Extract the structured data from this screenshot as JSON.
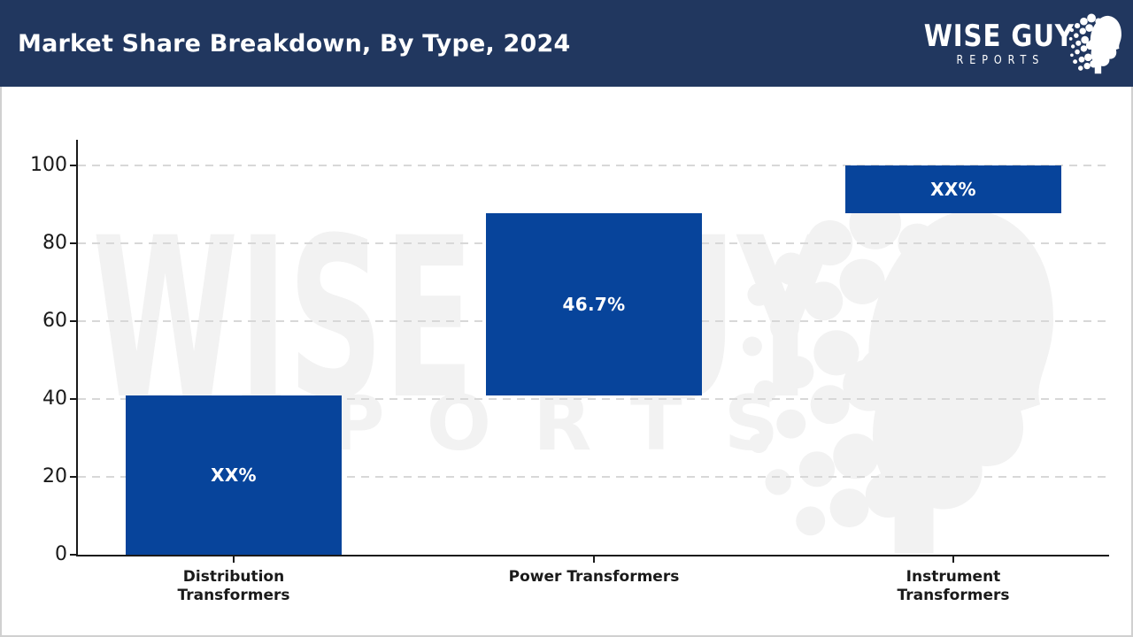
{
  "header": {
    "title": "Market Share Breakdown, By Type, 2024",
    "logo": {
      "wordmark": "WISE GUY",
      "subtext": "REPORTS"
    }
  },
  "watermark": {
    "wordmark": "WISE GUY",
    "subtext": "REPORTS"
  },
  "colors": {
    "header_bg": "#21375f",
    "title_text": "#ffffff",
    "bar_fill": "#07449b",
    "bar_label": "#ffffff",
    "axis_line": "#1a1a1a",
    "tick_label": "#1a1a1a",
    "gridline": "#d8d8d8",
    "watermark_gray": "#f2f2f2",
    "frame_border": "#d0d0d0"
  },
  "chart_data": {
    "type": "bar",
    "subtype": "floating-waterfall",
    "title": "Market Share Breakdown, By Type, 2024",
    "categories": [
      "Distribution Transformers",
      "Power Transformers",
      "Instrument Transformers"
    ],
    "category_label_lines": [
      [
        "Distribution",
        "Transformers"
      ],
      [
        "Power Transformers"
      ],
      [
        "Instrument",
        "Transformers"
      ]
    ],
    "series": [
      {
        "name": "Market share (%)",
        "segments": [
          {
            "category": "Distribution Transformers",
            "start": 0,
            "end": 41,
            "label": "XX%"
          },
          {
            "category": "Power Transformers",
            "start": 41,
            "end": 87.7,
            "label": "46.7%"
          },
          {
            "category": "Instrument Transformers",
            "start": 87.7,
            "end": 100,
            "label": "XX%"
          }
        ]
      }
    ],
    "xlabel": "",
    "ylabel": "",
    "ylim": [
      0,
      106
    ],
    "yticks": [
      0,
      20,
      40,
      60,
      80,
      100
    ],
    "grid": "horizontal-dashed",
    "legend_position": "none"
  }
}
